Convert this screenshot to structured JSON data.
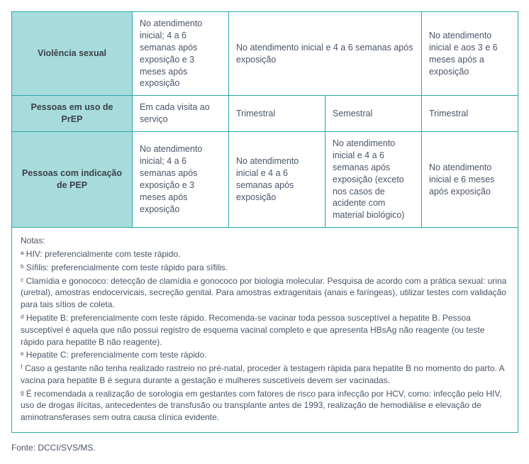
{
  "table": {
    "border_color": "#2aa8a8",
    "header_bg": "#a8dcdc",
    "cell_bg": "#ffffff",
    "text_color": "#4a5568",
    "rows": [
      {
        "head": "Violência sexual",
        "cells": [
          "No atendimento inicial; 4 a 6 semanas após exposição e 3 meses após exposição",
          "No atendimento inicial e 4 a 6 semanas após exposição",
          "No atendimento inicial e aos 3 e 6 meses após a exposição"
        ],
        "spans": [
          1,
          2,
          1
        ]
      },
      {
        "head": "Pessoas em uso de PrEP",
        "cells": [
          "Em cada visita ao serviço",
          "Trimestral",
          "Semestral",
          "Trimestral"
        ],
        "spans": [
          1,
          1,
          1,
          1
        ]
      },
      {
        "head": "Pessoas com indicação de PEP",
        "cells": [
          "No atendimento inicial; 4 a 6 semanas após exposição e 3 meses após exposição",
          "No atendimento inicial e 4 a 6 semanas após exposição",
          "No atendimento inicial e 4 a 6 semanas após exposição (exceto nos casos de acidente com material biológico)",
          "No atendimento inicial e 6 meses após exposição"
        ],
        "spans": [
          1,
          1,
          1,
          1
        ]
      }
    ],
    "notes_title": "Notas:",
    "notes": [
      "ᵃ HIV: preferencialmente com teste rápido.",
      "ᵇ Sífilis: preferencialmente com teste rápido para sífilis.",
      "ᶜ Clamídia e gonococo: detecção de clamídia e gonococo por biologia molecular. Pesquisa de acordo com a prática sexual: urina (uretral), amostras endocervicais, secreção genital. Para amostras extragenitais (anais e faríngeas), utilizar testes com validação para tais sítios de coleta.",
      "ᵈ Hepatite B: preferencialmente com teste rápido. Recomenda-se vacinar toda pessoa susceptível a hepatite B. Pessoa susceptível é aquela que não possui registro de esquema vacinal completo e que apresenta HBsAg não reagente (ou teste rápido para hepatite B não reagente).",
      "ᵉ Hepatite C: preferencialmente com teste rápido.",
      "ᶠ Caso a gestante não tenha realizado rastreio no pré-natal, proceder à testagem rápida para hepatite B no momento do parto. A vacina para hepatite B é segura durante a gestação e mulheres suscetíveis devem ser vacinadas.",
      "ᵍ É recomendada a realização de sorologia em gestantes com fatores de risco para infecção por HCV, como: infecção pelo HIV, uso de drogas ilícitas, antecedentes de transfusão ou transplante antes de 1993, realização de hemodiálise e elevação de aminotransferases sem outra causa clínica evidente."
    ]
  },
  "source": "Fonte: DCCI/SVS/MS."
}
